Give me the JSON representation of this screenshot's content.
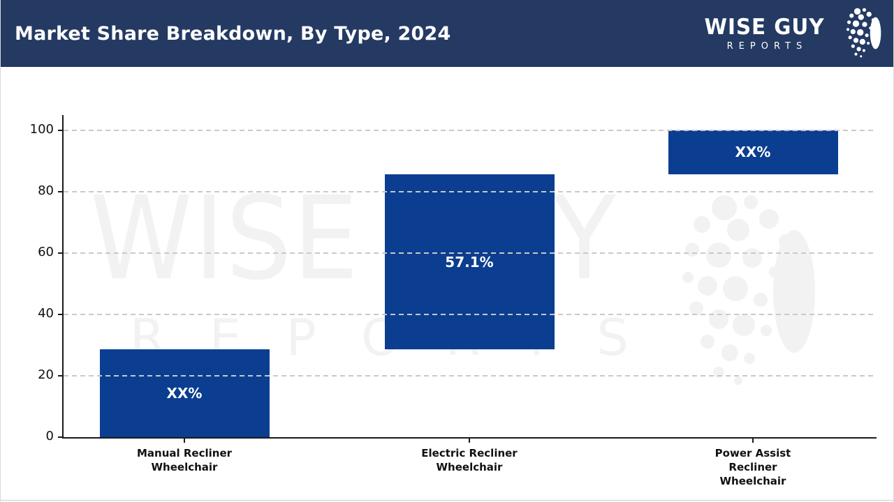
{
  "header": {
    "title": "Market Share Breakdown, By Type, 2024",
    "logo": {
      "wise_guy": "WISE GUY",
      "reports": "REPORTS"
    }
  },
  "watermark": {
    "wise_guy": "WISE GUY",
    "reports": "REPORTS"
  },
  "colors": {
    "header_bg": "#243a63",
    "bar": "#0b3e90",
    "grid": "#c9c9c9",
    "axis": "#1a1a1a",
    "watermark": "#f2f2f2",
    "bar_label_text": "#ffffff"
  },
  "chart_data": {
    "type": "bar",
    "variant": "waterfall",
    "title": "Market Share Breakdown, By Type, 2024",
    "ylim": [
      0,
      100
    ],
    "yticks": [
      0,
      20,
      40,
      60,
      80,
      100
    ],
    "grid": "horizontal-dashed",
    "legend": "none",
    "categories": [
      "Manual Recliner Wheelchair",
      "Electric Recliner Wheelchair",
      "Power Assist Recliner Wheelchair"
    ],
    "category_label_lines": [
      [
        "Manual Recliner",
        "Wheelchair"
      ],
      [
        "Electric Recliner",
        "Wheelchair"
      ],
      [
        "Power Assist",
        "Recliner",
        "Wheelchair"
      ]
    ],
    "segments": [
      {
        "category": "Manual Recliner Wheelchair",
        "start": 0,
        "end": 28.6,
        "value": 28.6,
        "label": "XX%"
      },
      {
        "category": "Electric Recliner Wheelchair",
        "start": 28.6,
        "end": 85.7,
        "value": 57.1,
        "label": "57.1%"
      },
      {
        "category": "Power Assist Recliner Wheelchair",
        "start": 85.7,
        "end": 100,
        "value": 14.3,
        "label": "XX%"
      }
    ]
  }
}
